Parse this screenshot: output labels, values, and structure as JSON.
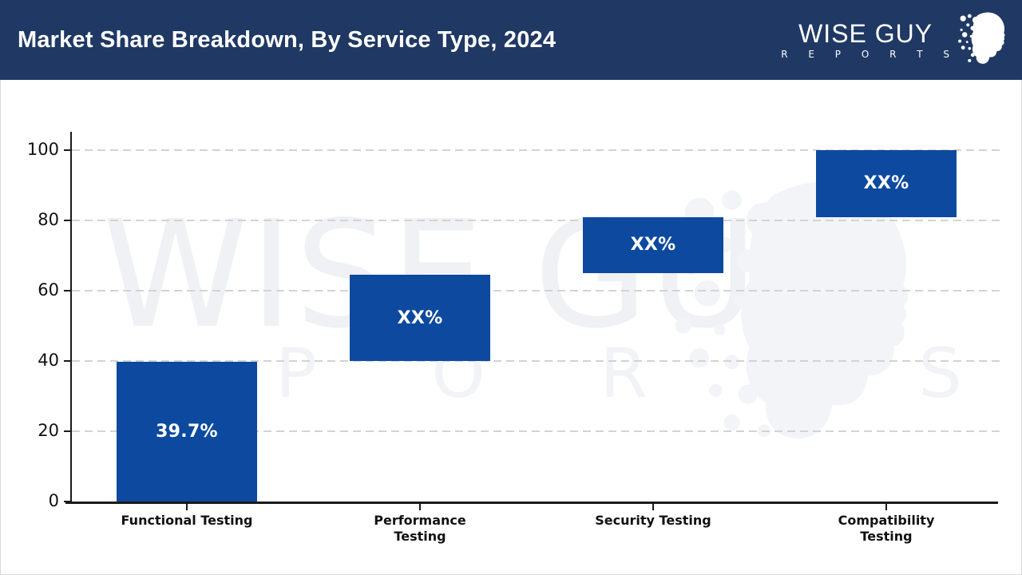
{
  "header": {
    "title": "Market Share Breakdown, By Service Type, 2024",
    "logo": {
      "wordmark": "WISE GUY",
      "sub": "R E P O R T S"
    }
  },
  "watermark": {
    "wordmark": "WISE GUY",
    "sub": "P O R T S"
  },
  "colors": {
    "header_bg": "#203864",
    "bar": "#0d4a9f",
    "gridline": "#d3d3d3",
    "axis": "#1a1a1a",
    "watermark": "#f0f1f4"
  },
  "chart_data": {
    "type": "bar",
    "variant": "floating-waterfall-columns",
    "title": "Market Share Breakdown, By Service Type, 2024",
    "categories": [
      "Functional Testing",
      "Performance Testing",
      "Security Testing",
      "Compatibility Testing"
    ],
    "category_lines": [
      [
        "Functional Testing"
      ],
      [
        "Performance",
        "Testing"
      ],
      [
        "Security Testing"
      ],
      [
        "Compatibility",
        "Testing"
      ]
    ],
    "bars": [
      {
        "category": "Functional Testing",
        "start": 0,
        "end": 39.7,
        "label": "39.7%"
      },
      {
        "category": "Performance Testing",
        "start": 40,
        "end": 64.5,
        "label": "XX%"
      },
      {
        "category": "Security Testing",
        "start": 65,
        "end": 81,
        "label": "XX%"
      },
      {
        "category": "Compatibility Testing",
        "start": 81,
        "end": 100,
        "label": "XX%"
      }
    ],
    "xlabel": "",
    "ylabel": "",
    "ylim": [
      0,
      100
    ],
    "yticks": [
      0,
      20,
      40,
      60,
      80,
      100
    ],
    "grid": "horizontal-dashed",
    "legend": "none"
  }
}
